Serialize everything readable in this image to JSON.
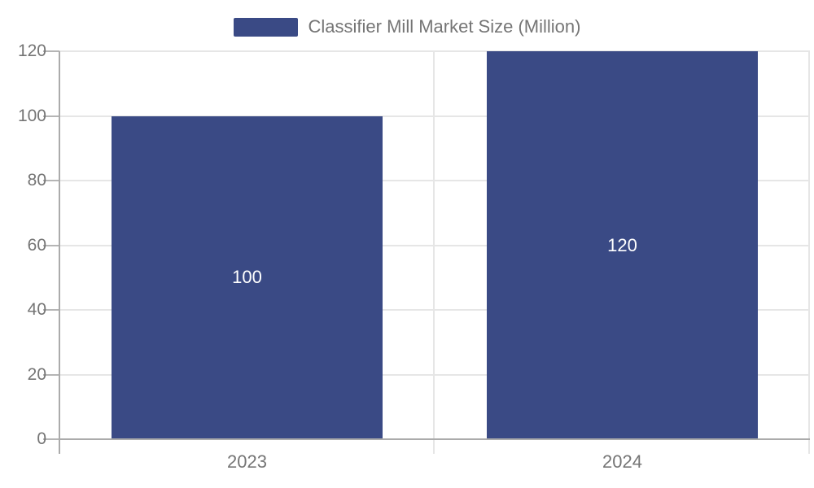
{
  "chart_data": {
    "type": "bar",
    "title": "Classifier Mill Market Size (Million)",
    "categories": [
      "2023",
      "2024"
    ],
    "series": [
      {
        "name": "Classifier Mill Market Size (Million)",
        "values": [
          100,
          120
        ]
      }
    ],
    "value_labels": [
      "100",
      "120"
    ],
    "yticks": [
      0,
      20,
      40,
      60,
      80,
      100,
      120
    ],
    "ytick_labels": [
      "0",
      "20",
      "40",
      "60",
      "80",
      "100",
      "120"
    ],
    "ylim": [
      0,
      120
    ],
    "xlabel": "",
    "ylabel": "",
    "grid": true,
    "legend_position": "top-center"
  },
  "colors": {
    "bar": "#3a4a85",
    "grid_line": "#e6e6e6",
    "axis_line": "#ababab",
    "tick_mark": "#b5b5b5",
    "tick_text": "#757575",
    "legend_text": "#757575",
    "value_label_text": "#ffffff",
    "background": "#ffffff"
  }
}
